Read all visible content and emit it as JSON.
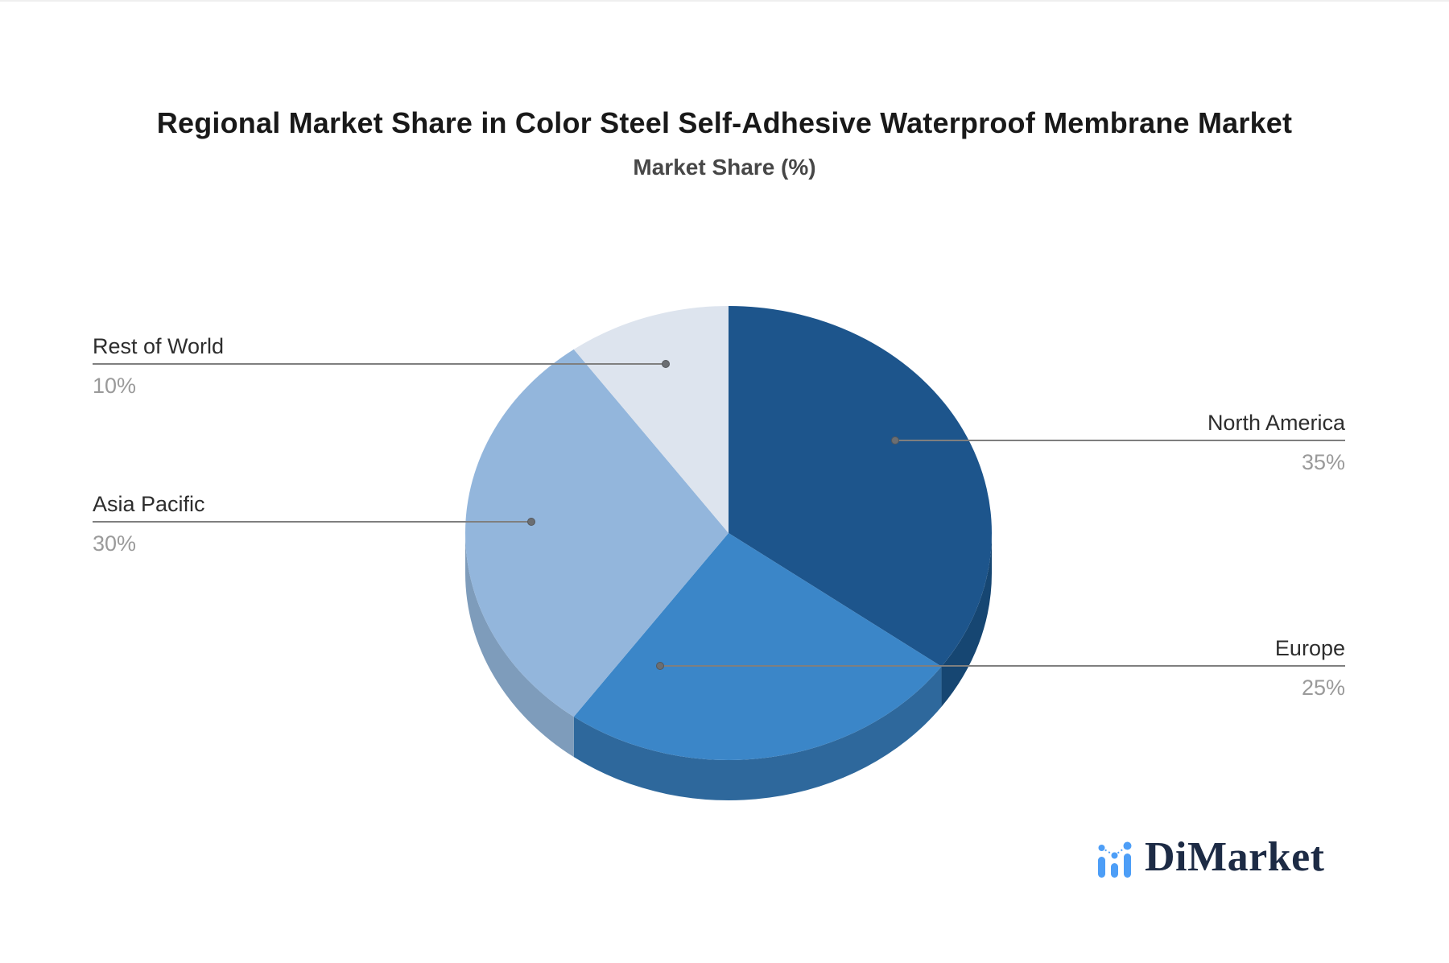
{
  "chart_data": {
    "type": "pie",
    "style": "3d",
    "title": "Regional Market Share in Color Steel Self-Adhesive Waterproof Membrane Market",
    "subtitle": "Market Share (%)",
    "start_angle_deg": 0,
    "direction": "clockwise",
    "legend_position": "none",
    "labels": "external-callouts",
    "slices": [
      {
        "label": "North America",
        "value": 35,
        "display": "35%",
        "color": "#1d558c",
        "side_color": "#164672"
      },
      {
        "label": "Europe",
        "value": 25,
        "display": "25%",
        "color": "#3b86c8",
        "side_color": "#2e689c"
      },
      {
        "label": "Asia Pacific",
        "value": 30,
        "display": "30%",
        "color": "#93b6dc",
        "side_color": "#7e9cbb"
      },
      {
        "label": "Rest of World",
        "value": 10,
        "display": "10%",
        "color": "#dde4ee",
        "side_color": "#b9c3d2"
      }
    ]
  },
  "callout": {
    "line_color": "#7f7f7f",
    "dot_color": "#6b6e72",
    "label_color": "#2d2d2d",
    "pct_color": "#9a9a9a"
  },
  "branding": {
    "logo_text": "DiMarket",
    "logo_color": "#1d2b45",
    "logo_accent": "#4d9ef7"
  }
}
